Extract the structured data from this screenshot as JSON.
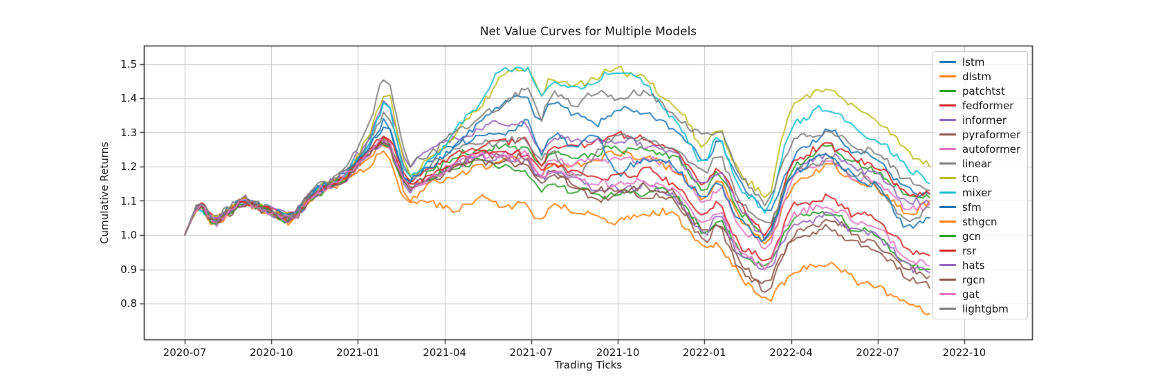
{
  "title": "Net Value Curves for Multiple Models",
  "x_axis": {
    "label": "Trading Ticks",
    "tick_labels": [
      "2020-07",
      "2020-10",
      "2021-01",
      "2021-04",
      "2021-07",
      "2021-10",
      "2022-01",
      "2022-04",
      "2022-07",
      "2022-10"
    ]
  },
  "y_axis": {
    "label": "Cumulative Returns",
    "tick_labels": [
      "0.8",
      "0.9",
      "1.0",
      "1.1",
      "1.2",
      "1.3",
      "1.4",
      "1.5"
    ]
  },
  "legend": {
    "position": "upper-right"
  },
  "colors": {
    "background": "#ffffff",
    "grid": "#c8c8c8",
    "spine": "#262626",
    "text": "#1a1a1a"
  },
  "chart_data": {
    "type": "line",
    "title": "Net Value Curves for Multiple Models",
    "xlabel": "Trading Ticks",
    "ylabel": "Cumulative Returns",
    "grid": true,
    "legend_position": "upper right",
    "x_tick_labels": [
      "2020-07",
      "2020-10",
      "2021-01",
      "2021-04",
      "2021-07",
      "2021-10",
      "2022-01",
      "2022-04",
      "2022-07",
      "2022-10"
    ],
    "x_tick_positions_months": [
      0,
      3,
      6,
      9,
      12,
      15,
      18,
      21,
      24,
      27
    ],
    "y_ticks": [
      0.8,
      0.9,
      1.0,
      1.1,
      1.2,
      1.3,
      1.4,
      1.5
    ],
    "ylim": [
      0.693,
      1.553
    ],
    "xlim_months": [
      -1.41,
      29.37
    ],
    "x_months_since_2020_07": [
      0,
      0.5,
      1,
      2,
      3,
      3.7,
      4.5,
      5.5,
      6.3,
      7.0,
      7.7,
      8.5,
      9.4,
      10.2,
      11,
      12,
      12.25,
      12.7,
      13.5,
      14.2,
      15,
      16,
      17,
      18,
      18.5,
      19.2,
      20.2,
      21,
      22.3,
      23.2,
      24,
      25,
      25.8
    ],
    "series": [
      {
        "name": "lstm",
        "color": "#1f77b4",
        "values": [
          1.0,
          1.1,
          1.04,
          1.105,
          1.07,
          1.05,
          1.13,
          1.175,
          1.25,
          1.35,
          1.14,
          1.22,
          1.26,
          1.33,
          1.38,
          1.42,
          1.3,
          1.4,
          1.35,
          1.32,
          1.37,
          1.35,
          1.31,
          1.22,
          1.28,
          1.16,
          1.05,
          1.22,
          1.31,
          1.24,
          1.22,
          1.13,
          1.12
        ]
      },
      {
        "name": "dlstm",
        "color": "#ff7f0e",
        "values": [
          1.0,
          1.095,
          1.03,
          1.1,
          1.065,
          1.04,
          1.12,
          1.16,
          1.22,
          1.28,
          1.1,
          1.15,
          1.17,
          1.2,
          1.22,
          1.22,
          1.15,
          1.21,
          1.2,
          1.22,
          1.24,
          1.23,
          1.19,
          1.1,
          1.17,
          1.05,
          0.97,
          1.14,
          1.21,
          1.16,
          1.14,
          1.06,
          1.1
        ]
      },
      {
        "name": "patchtst",
        "color": "#2ca02c",
        "values": [
          1.0,
          1.098,
          1.032,
          1.102,
          1.07,
          1.045,
          1.125,
          1.17,
          1.24,
          1.29,
          1.14,
          1.18,
          1.23,
          1.25,
          1.26,
          1.26,
          1.18,
          1.24,
          1.23,
          1.24,
          1.25,
          1.25,
          1.23,
          1.12,
          1.19,
          1.07,
          0.98,
          1.2,
          1.26,
          1.21,
          1.19,
          1.11,
          1.11
        ]
      },
      {
        "name": "fedformer",
        "color": "#d62728",
        "values": [
          1.0,
          1.102,
          1.038,
          1.106,
          1.072,
          1.05,
          1.13,
          1.172,
          1.25,
          1.3,
          1.15,
          1.19,
          1.24,
          1.26,
          1.27,
          1.28,
          1.19,
          1.26,
          1.26,
          1.27,
          1.3,
          1.28,
          1.25,
          1.14,
          1.21,
          1.09,
          0.99,
          1.21,
          1.27,
          1.22,
          1.2,
          1.12,
          1.12
        ]
      },
      {
        "name": "informer",
        "color": "#9467bd",
        "values": [
          1.0,
          1.097,
          1.036,
          1.103,
          1.075,
          1.05,
          1.132,
          1.18,
          1.27,
          1.4,
          1.2,
          1.26,
          1.28,
          1.31,
          1.33,
          1.32,
          1.23,
          1.28,
          1.28,
          1.27,
          1.28,
          1.26,
          1.24,
          1.13,
          1.2,
          1.08,
          0.98,
          1.18,
          1.24,
          1.2,
          1.18,
          1.1,
          1.09
        ]
      },
      {
        "name": "pyraformer",
        "color": "#8c564b",
        "values": [
          1.0,
          1.096,
          1.033,
          1.101,
          1.068,
          1.045,
          1.125,
          1.165,
          1.24,
          1.29,
          1.13,
          1.17,
          1.21,
          1.23,
          1.23,
          1.22,
          1.15,
          1.2,
          1.14,
          1.1,
          1.12,
          1.12,
          1.1,
          1.0,
          1.05,
          0.92,
          0.85,
          1.0,
          1.05,
          1.0,
          0.97,
          0.9,
          0.88
        ]
      },
      {
        "name": "autoformer",
        "color": "#e377c2",
        "values": [
          1.0,
          1.094,
          1.03,
          1.098,
          1.065,
          1.04,
          1.12,
          1.16,
          1.23,
          1.28,
          1.13,
          1.16,
          1.21,
          1.23,
          1.24,
          1.24,
          1.16,
          1.22,
          1.21,
          1.22,
          1.22,
          1.22,
          1.2,
          1.08,
          1.15,
          1.03,
          0.95,
          1.17,
          1.22,
          1.17,
          1.16,
          1.07,
          1.09
        ]
      },
      {
        "name": "linear",
        "color": "#7f7f7f",
        "values": [
          1.0,
          1.103,
          1.04,
          1.107,
          1.075,
          1.052,
          1.135,
          1.178,
          1.26,
          1.38,
          1.16,
          1.2,
          1.25,
          1.27,
          1.27,
          1.28,
          1.19,
          1.26,
          1.15,
          1.24,
          1.3,
          1.28,
          1.25,
          1.18,
          1.24,
          1.1,
          1.02,
          1.18,
          1.22,
          1.18,
          1.15,
          1.03,
          1.08
        ]
      },
      {
        "name": "tcn",
        "color": "#bcbd22",
        "values": [
          1.0,
          1.099,
          1.034,
          1.104,
          1.07,
          1.047,
          1.13,
          1.172,
          1.27,
          1.445,
          1.17,
          1.22,
          1.3,
          1.37,
          1.47,
          1.5,
          1.38,
          1.47,
          1.43,
          1.46,
          1.49,
          1.45,
          1.38,
          1.25,
          1.32,
          1.18,
          1.1,
          1.39,
          1.43,
          1.37,
          1.33,
          1.25,
          1.2
        ]
      },
      {
        "name": "mixer",
        "color": "#17becf",
        "values": [
          1.0,
          1.093,
          1.03,
          1.1,
          1.066,
          1.042,
          1.126,
          1.17,
          1.26,
          1.4,
          1.16,
          1.21,
          1.31,
          1.38,
          1.49,
          1.48,
          1.39,
          1.46,
          1.42,
          1.45,
          1.49,
          1.44,
          1.33,
          1.2,
          1.3,
          1.14,
          1.06,
          1.33,
          1.375,
          1.31,
          1.28,
          1.2,
          1.15
        ]
      },
      {
        "name": "sfm",
        "color": "#1f77b4",
        "values": [
          1.0,
          1.101,
          1.037,
          1.104,
          1.071,
          1.049,
          1.13,
          1.172,
          1.25,
          1.33,
          1.15,
          1.2,
          1.26,
          1.29,
          1.3,
          1.33,
          1.22,
          1.3,
          1.25,
          1.3,
          1.18,
          1.22,
          1.2,
          1.1,
          1.16,
          1.04,
          0.98,
          1.18,
          1.24,
          1.16,
          1.15,
          1.02,
          1.05
        ]
      },
      {
        "name": "sthgcn",
        "color": "#ff7f0e",
        "values": [
          1.0,
          1.092,
          1.028,
          1.096,
          1.06,
          1.035,
          1.115,
          1.15,
          1.2,
          1.25,
          1.08,
          1.1,
          1.07,
          1.11,
          1.09,
          1.08,
          1.03,
          1.09,
          1.07,
          1.05,
          1.035,
          1.07,
          1.06,
          0.95,
          0.98,
          0.88,
          0.8,
          0.89,
          0.92,
          0.87,
          0.85,
          0.8,
          0.77
        ]
      },
      {
        "name": "gcn",
        "color": "#2ca02c",
        "values": [
          1.0,
          1.095,
          1.031,
          1.097,
          1.066,
          1.041,
          1.121,
          1.161,
          1.23,
          1.28,
          1.13,
          1.16,
          1.2,
          1.22,
          1.2,
          1.18,
          1.12,
          1.15,
          1.13,
          1.12,
          1.12,
          1.13,
          1.12,
          1.0,
          1.06,
          0.95,
          0.9,
          1.05,
          1.07,
          1.02,
          1.0,
          0.92,
          0.9
        ]
      },
      {
        "name": "rsr",
        "color": "#d62728",
        "values": [
          1.0,
          1.1,
          1.036,
          1.102,
          1.07,
          1.046,
          1.126,
          1.166,
          1.24,
          1.29,
          1.14,
          1.17,
          1.22,
          1.24,
          1.24,
          1.24,
          1.17,
          1.21,
          1.19,
          1.17,
          1.17,
          1.19,
          1.15,
          1.05,
          1.1,
          0.97,
          0.92,
          1.08,
          1.11,
          1.06,
          1.05,
          0.96,
          0.94
        ]
      },
      {
        "name": "hats",
        "color": "#9467bd",
        "values": [
          1.0,
          1.094,
          1.029,
          1.096,
          1.065,
          1.04,
          1.12,
          1.16,
          1.23,
          1.28,
          1.13,
          1.16,
          1.21,
          1.23,
          1.22,
          1.22,
          1.15,
          1.19,
          1.16,
          1.14,
          1.13,
          1.15,
          1.11,
          1.0,
          1.06,
          0.94,
          0.89,
          1.03,
          1.06,
          1.01,
          1.0,
          0.91,
          0.89
        ]
      },
      {
        "name": "rgcn",
        "color": "#8c564b",
        "values": [
          1.0,
          1.091,
          1.027,
          1.095,
          1.064,
          1.039,
          1.119,
          1.159,
          1.23,
          1.28,
          1.13,
          1.16,
          1.2,
          1.22,
          1.21,
          1.2,
          1.14,
          1.18,
          1.15,
          1.13,
          1.13,
          1.14,
          1.12,
          0.97,
          1.03,
          0.9,
          0.83,
          0.99,
          1.02,
          0.98,
          0.95,
          0.88,
          0.845
        ]
      },
      {
        "name": "gat",
        "color": "#e377c2",
        "values": [
          1.0,
          1.097,
          1.033,
          1.099,
          1.068,
          1.043,
          1.123,
          1.163,
          1.235,
          1.285,
          1.135,
          1.165,
          1.215,
          1.235,
          1.23,
          1.23,
          1.16,
          1.2,
          1.17,
          1.15,
          1.15,
          1.16,
          1.13,
          1.02,
          1.08,
          0.95,
          0.9,
          1.06,
          1.09,
          1.04,
          1.02,
          0.93,
          0.91
        ]
      },
      {
        "name": "lightgbm",
        "color": "#7f7f7f",
        "values": [
          1.0,
          1.104,
          1.042,
          1.108,
          1.076,
          1.053,
          1.136,
          1.182,
          1.3,
          1.49,
          1.2,
          1.24,
          1.3,
          1.34,
          1.38,
          1.44,
          1.32,
          1.42,
          1.38,
          1.42,
          1.4,
          1.42,
          1.35,
          1.28,
          1.32,
          1.18,
          1.08,
          1.28,
          1.3,
          1.26,
          1.24,
          1.16,
          1.13
        ]
      }
    ]
  }
}
